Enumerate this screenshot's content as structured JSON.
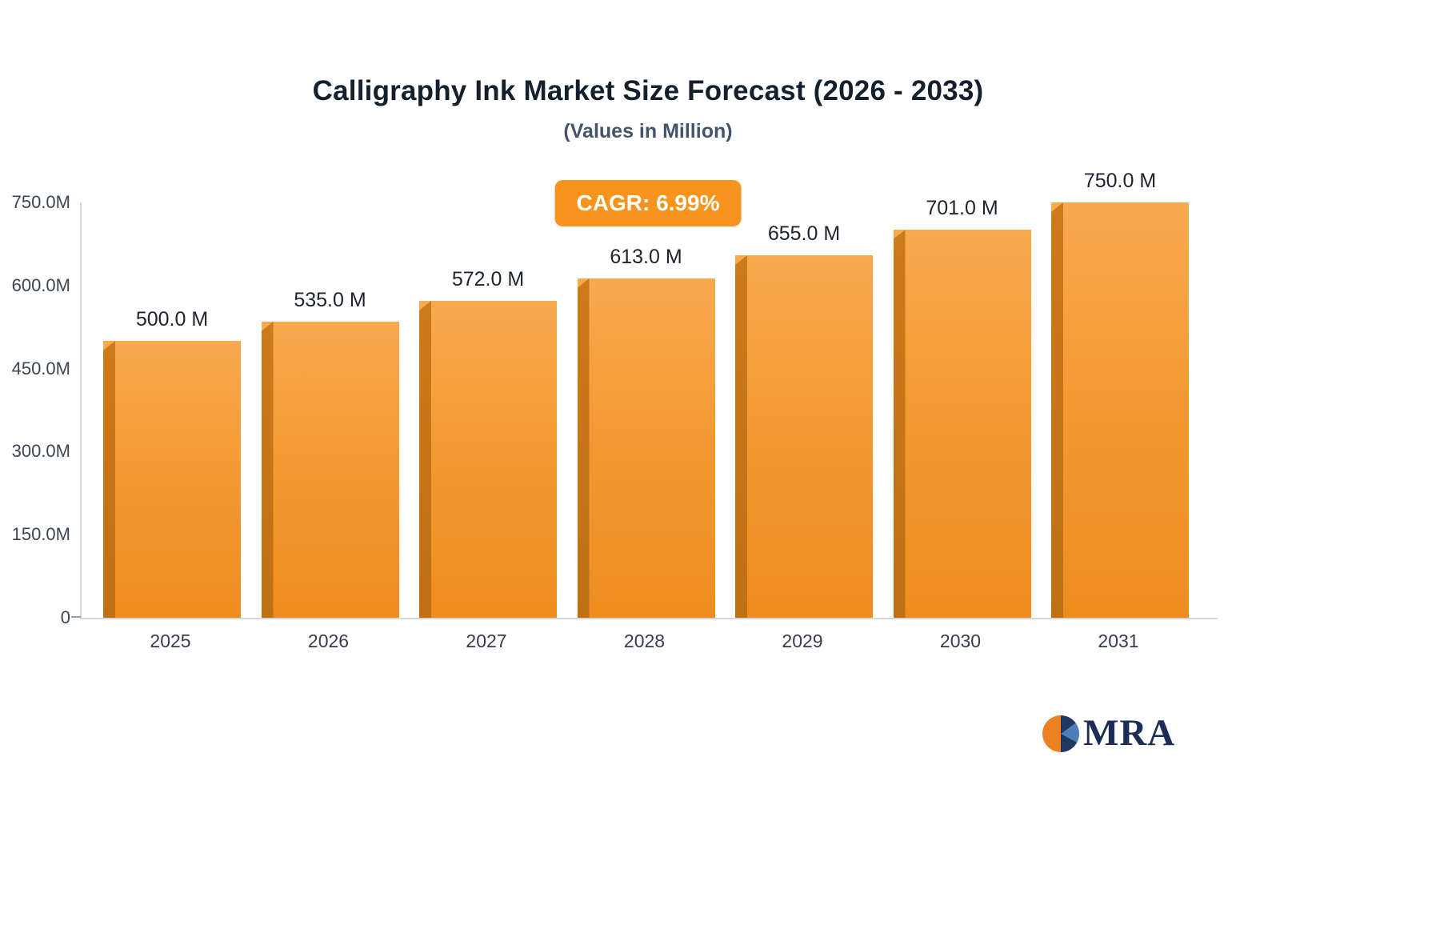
{
  "header": {
    "title": "Calligraphy Ink Market Size Forecast (2026 - 2033)",
    "subtitle": "(Values in Million)"
  },
  "badge": {
    "label": "CAGR: 6.99%",
    "color": "#f7941e"
  },
  "logo": {
    "text": "MRA"
  },
  "chart_data": {
    "type": "bar",
    "title": "Calligraphy Ink Market Size Forecast (2026 - 2033)",
    "subtitle": "(Values in Million)",
    "categories": [
      "2025",
      "2026",
      "2027",
      "2028",
      "2029",
      "2030",
      "2031"
    ],
    "values": [
      500,
      535,
      572,
      613,
      655,
      701,
      750
    ],
    "value_labels": [
      "500.0 M",
      "535.0 M",
      "572.0 M",
      "613.0 M",
      "655.0 M",
      "701.0 M",
      "750.0 M"
    ],
    "yticks": [
      750,
      600,
      450,
      300,
      150,
      0
    ],
    "ytick_labels": [
      "750.0M",
      "600.0M",
      "450.0M",
      "300.0M",
      "150.0M",
      "0"
    ],
    "ylim": [
      0,
      750
    ],
    "xlabel": "",
    "ylabel": "",
    "grid": false,
    "legend": "none",
    "bar_color_top": "#f9a94f",
    "bar_color_bottom": "#ee8c1f",
    "bar_side_color": "#c9741a",
    "cagr": "CAGR: 6.99%"
  }
}
